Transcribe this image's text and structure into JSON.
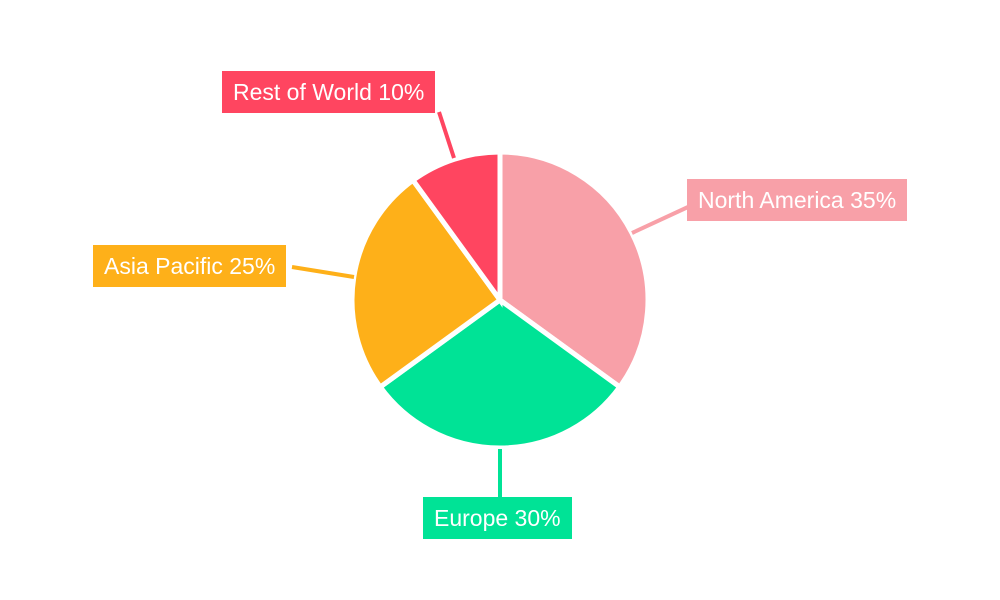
{
  "chart_data": {
    "type": "pie",
    "title": "",
    "categories": [
      "North America",
      "Europe",
      "Asia Pacific",
      "Rest of World"
    ],
    "values": [
      35,
      30,
      25,
      10
    ],
    "unit": "%",
    "slices": [
      {
        "name": "North America",
        "value": 35,
        "display": "North America 35%",
        "color": "#F8A0A8"
      },
      {
        "name": "Europe",
        "value": 30,
        "display": "Europe 30%",
        "color": "#00E396"
      },
      {
        "name": "Asia Pacific",
        "value": 25,
        "display": "Asia Pacific 25%",
        "color": "#FEB019"
      },
      {
        "name": "Rest of World",
        "value": 10,
        "display": "Rest of World 10%",
        "color": "#FF4560"
      }
    ],
    "start_angle_deg": 0,
    "direction": "clockwise",
    "legend_position": "none",
    "label_style": "outside callout boxes with leader lines",
    "label_text_color": "#FFFFFF",
    "slice_gap_color": "#FFFFFF",
    "background": "#FFFFFF"
  }
}
